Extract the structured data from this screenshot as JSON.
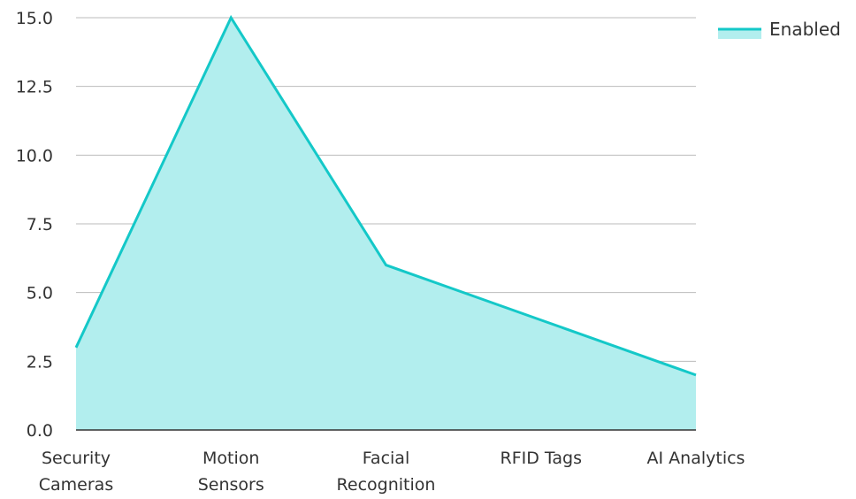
{
  "chart_data": {
    "type": "area",
    "categories": [
      [
        "Security",
        "Cameras"
      ],
      [
        "Motion",
        "Sensors"
      ],
      [
        "Facial",
        "Recognition"
      ],
      [
        "RFID Tags"
      ],
      [
        "AI Analytics"
      ]
    ],
    "series": [
      {
        "name": "Enabled",
        "values": [
          3,
          15,
          6,
          4,
          2
        ]
      }
    ],
    "y_ticks": [
      "0.0",
      "2.5",
      "5.0",
      "7.5",
      "10.0",
      "12.5",
      "15.0"
    ],
    "ylim": [
      0,
      15
    ],
    "grid": true,
    "legend_position": "top-right",
    "colors": {
      "line": "#14C8C8",
      "fill": "#B2EEEE",
      "grid": "#BBBBBB",
      "axis": "#333333"
    }
  }
}
